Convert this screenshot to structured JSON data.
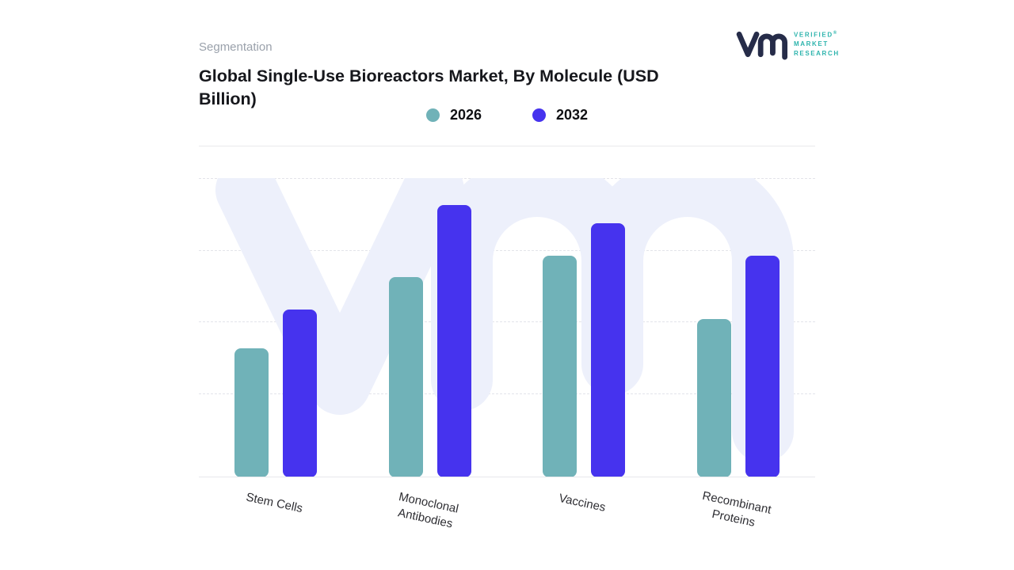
{
  "page": {
    "eyebrow": "Segmentation"
  },
  "title": "Global Single-Use Bioreactors Market, By Molecule (USD Billion)",
  "logo": {
    "line1": "VERIFIED",
    "line2": "MARKET",
    "line3": "RESEARCH",
    "reg": "®",
    "mark_color": "#262c49",
    "text_color": "#2db4ad"
  },
  "colors": {
    "watermark": "#edf0fb",
    "grid": "#e3e4ea",
    "baseline": "#e7e8ec"
  },
  "chart_data": {
    "type": "bar",
    "title": "Global Single-Use Bioreactors Market, By Molecule (USD Billion)",
    "categories": [
      "Stem Cells",
      "Monoclonal Antibodies",
      "Vaccines",
      "Recombinant Proteins"
    ],
    "series": [
      {
        "name": "2026",
        "color": "#70b2b8",
        "values": [
          43,
          67,
          74,
          53
        ]
      },
      {
        "name": "2032",
        "color": "#4633ee",
        "values": [
          56,
          91,
          85,
          74
        ]
      }
    ],
    "ylim": [
      0,
      100
    ],
    "value_axis": "unlabeled (bar heights estimated, relative scale 0-100)",
    "grid": "horizontal-dashed",
    "legend_position": "top-center"
  }
}
